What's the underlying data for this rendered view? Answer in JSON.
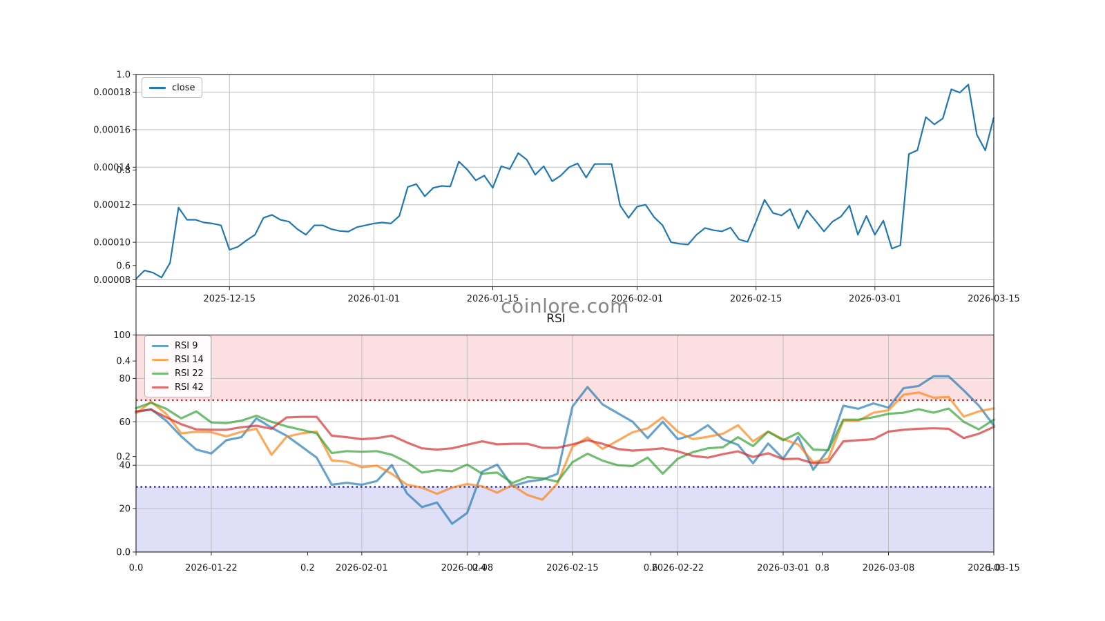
{
  "watermark": {
    "text": "coinlore.com"
  },
  "figure_axis": {
    "y_tick_labels": [
      "1.0",
      "0.8",
      "0.6",
      "0.4",
      "0.2",
      "0.0"
    ],
    "x_tick_labels": [
      "0.0",
      "0.2",
      "0.4",
      "0.6",
      "0.8",
      "1.0"
    ]
  },
  "chart_data": [
    {
      "id": "price",
      "type": "line",
      "title": "",
      "x_start_date": "2025-12-04",
      "x_end_date": "2026-03-15",
      "x_tick_labels": [
        "2025-12-15",
        "2026-01-01",
        "2026-01-15",
        "2026-02-01",
        "2026-02-15",
        "2026-03-01",
        "2026-03-15"
      ],
      "x_tick_indices": [
        11,
        28,
        42,
        59,
        73,
        87,
        101
      ],
      "y_tick_labels": [
        "0.00008",
        "0.00010",
        "0.00012",
        "0.00014",
        "0.00016",
        "0.00018"
      ],
      "y_tick_values": [
        8e-05,
        0.0001,
        0.00012,
        0.00014,
        0.00016,
        0.00018
      ],
      "ylim": [
        7.63e-05,
        0.0001892
      ],
      "grid": true,
      "legend_position": "upper-left",
      "series": [
        {
          "name": "close",
          "color": "#1f77b4",
          "values": [
            8.05e-05,
            8.5e-05,
            8.38e-05,
            8.12e-05,
            8.9e-05,
            0.0001185,
            0.000112,
            0.000112,
            0.0001105,
            0.00011,
            0.000109,
            9.6e-05,
            9.76e-05,
            0.000101,
            0.000104,
            0.000113,
            0.0001146,
            0.000112,
            0.000111,
            0.000107,
            0.000104,
            0.000109,
            0.000109,
            0.000107,
            0.000106,
            0.0001057,
            0.000108,
            0.000109,
            0.00011,
            0.0001105,
            0.00011,
            0.000114,
            0.0001295,
            0.000131,
            0.0001245,
            0.000129,
            0.00013,
            0.0001297,
            0.000143,
            0.0001387,
            0.000133,
            0.0001355,
            0.000129,
            0.0001405,
            0.000139,
            0.0001475,
            0.000144,
            0.000136,
            0.0001405,
            0.0001325,
            0.0001355,
            0.00014,
            0.000142,
            0.0001345,
            0.0001417,
            0.0001417,
            0.0001417,
            0.0001196,
            0.000113,
            0.000119,
            0.00012,
            0.0001134,
            0.000109,
            0.0001,
            9.92e-05,
            9.88e-05,
            0.000104,
            0.0001076,
            0.0001064,
            0.0001058,
            0.0001078,
            0.0001015,
            0.0001002,
            0.000111,
            0.0001226,
            0.0001156,
            0.0001143,
            0.0001177,
            0.0001074,
            0.000117,
            0.0001115,
            0.0001058,
            0.000111,
            0.0001137,
            0.0001195,
            0.000104,
            0.000114,
            0.000104,
            0.0001115,
            9.66e-05,
            9.84e-05,
            0.000147,
            0.000149,
            0.0001667,
            0.0001628,
            0.000166,
            0.0001815,
            0.0001797,
            0.000184,
            0.0001573,
            0.000149,
            0.0001665
          ]
        }
      ]
    },
    {
      "id": "rsi",
      "type": "line",
      "title": "RSI",
      "x_start_date": "2026-01-17",
      "x_end_date": "2026-03-15",
      "x_tick_labels": [
        "2026-01-22",
        "2026-02-01",
        "2026-02-08",
        "2026-02-15",
        "2026-02-22",
        "2026-03-01",
        "2026-03-08",
        "2026-03-15"
      ],
      "x_tick_indices": [
        5,
        15,
        22,
        29,
        36,
        43,
        50,
        57
      ],
      "y_tick_labels": [
        "0",
        "20",
        "40",
        "60",
        "80",
        "100"
      ],
      "y_tick_values": [
        0,
        20,
        40,
        60,
        80,
        100
      ],
      "ylim": [
        0,
        100
      ],
      "grid": true,
      "legend_position": "upper-left",
      "overbought_level": 70,
      "oversold_level": 30,
      "overbought_line_color": "#ff0000",
      "oversold_line_color": "#0000cc",
      "overbought_fill": "rgba(230,30,45,0.14)",
      "oversold_fill": "rgba(25,25,200,0.14)",
      "series": [
        {
          "name": "RSI 9",
          "color": "#1f77b4",
          "values": [
            64.5,
            65.8,
            60.5,
            53.3,
            47.2,
            45.4,
            51.5,
            52.9,
            61.6,
            57.3,
            53.6,
            48.6,
            43.5,
            31,
            31.9,
            31,
            32.7,
            40.1,
            27,
            20.7,
            22.8,
            13,
            18,
            37,
            40.3,
            30.3,
            32.4,
            33.4,
            36,
            67,
            76,
            68,
            64,
            60,
            52.5,
            60,
            52,
            54,
            58.4,
            52,
            49.4,
            40.9,
            50,
            43,
            53,
            37.9,
            47.2,
            67.4,
            66,
            68.5,
            66.5,
            75.5,
            76.5,
            81,
            81,
            74.5,
            67.5,
            58.3
          ]
        },
        {
          "name": "RSI 14",
          "color": "#ff7f0e",
          "values": [
            63.9,
            69.2,
            63.7,
            54.7,
            55.4,
            55.2,
            53.3,
            55.4,
            56.8,
            44.8,
            53.1,
            54.7,
            55.5,
            42.2,
            41.6,
            39.1,
            39.8,
            36,
            31,
            29.7,
            26.8,
            29.7,
            31.3,
            30.3,
            27.3,
            30.8,
            26.3,
            24.1,
            31.5,
            48.5,
            52.8,
            47.5,
            51.3,
            55.2,
            57,
            62.1,
            55.5,
            52,
            53.1,
            54.5,
            58.4,
            51,
            55.5,
            52,
            49.6,
            41.4,
            43,
            60.5,
            60.5,
            64.2,
            65.3,
            72.5,
            73.5,
            71.1,
            71.4,
            62.4,
            64.8,
            66.2
          ]
        },
        {
          "name": "RSI 22",
          "color": "#2ca02c",
          "values": [
            66.3,
            68.8,
            66,
            61.6,
            64.8,
            59.7,
            59.4,
            60.5,
            62.8,
            60,
            57.9,
            56.3,
            54.7,
            45.6,
            46.5,
            46.2,
            46.5,
            44.8,
            41.4,
            36.6,
            37.7,
            37.2,
            40.3,
            36.1,
            36.6,
            31.8,
            34.5,
            34,
            32.4,
            41.4,
            45.3,
            42.1,
            40,
            39.6,
            43.5,
            36.1,
            43,
            46,
            47.8,
            48.3,
            52.9,
            48.8,
            55.5,
            51.5,
            54.9,
            47.2,
            46.9,
            61,
            61,
            62.1,
            63.7,
            64.2,
            65.8,
            64.2,
            66.1,
            60,
            56.5,
            61
          ]
        },
        {
          "name": "RSI 42",
          "color": "#d62728",
          "values": [
            64.8,
            65.6,
            62.1,
            58.9,
            56.5,
            56.3,
            56.3,
            57.5,
            58.2,
            56.8,
            62,
            62.3,
            62.3,
            53.6,
            52.9,
            52,
            52.5,
            53.6,
            50.5,
            47.8,
            47.2,
            47.8,
            49.4,
            51,
            49.6,
            49.9,
            49.9,
            48,
            48,
            49.6,
            51.5,
            49.9,
            47.5,
            46.7,
            47.2,
            47.8,
            46.4,
            44.3,
            43.5,
            45.1,
            46.4,
            43.8,
            45.5,
            42.8,
            43,
            40.9,
            41.4,
            51,
            51.5,
            52,
            55.5,
            56.3,
            56.8,
            57,
            56.8,
            52.5,
            54.5,
            57.6
          ]
        }
      ]
    }
  ]
}
